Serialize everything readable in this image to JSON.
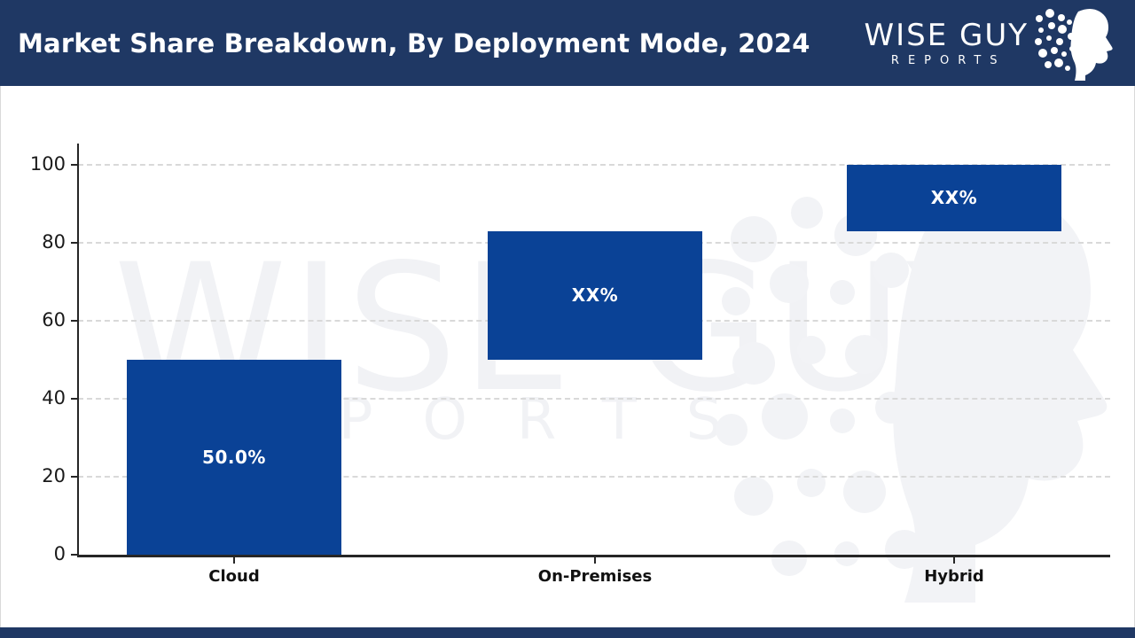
{
  "header": {
    "title": "Market Share Breakdown, By Deployment Mode, 2024",
    "logo_line1": "WISE GUY",
    "logo_line2": "REPORTS"
  },
  "watermark": {
    "line1": "WISE GUY",
    "line2": "REPORTS"
  },
  "colors": {
    "navy": "#1f3864",
    "bar_blue": "#0a4296",
    "grid_gray": "#d9d9d9",
    "axis_black": "#262626",
    "bar_label_white": "#ffffff",
    "watermark_gray": "#f1f2f5"
  },
  "chart_data": {
    "type": "bar",
    "subtype": "waterfall",
    "title": "Market Share Breakdown, By Deployment Mode, 2024",
    "categories": [
      "Cloud",
      "On-Premises",
      "Hybrid"
    ],
    "series": [
      {
        "name": "Market Share (%)",
        "segments": [
          {
            "category": "Cloud",
            "start": 0,
            "end": 50,
            "value": 50,
            "label": "50.0%"
          },
          {
            "category": "On-Premises",
            "start": 50,
            "end": 83,
            "value": 33,
            "label": "XX%"
          },
          {
            "category": "Hybrid",
            "start": 83,
            "end": 100,
            "value": 17,
            "label": "XX%"
          }
        ]
      }
    ],
    "xlabel": "",
    "ylabel": "",
    "ylim": [
      0,
      100
    ],
    "yticks": [
      0,
      20,
      40,
      60,
      80,
      100
    ],
    "grid": "horizontal-dashed",
    "legend": "none",
    "bar_color": "#0a4296"
  }
}
